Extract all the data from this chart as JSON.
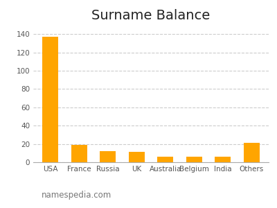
{
  "title": "Surname Balance",
  "categories": [
    "USA",
    "France",
    "Russia",
    "UK",
    "Australia",
    "Belgium",
    "India",
    "Others"
  ],
  "values": [
    137,
    19,
    12,
    11,
    6,
    6,
    6,
    21
  ],
  "bar_color": "#FFA500",
  "ylim": [
    0,
    150
  ],
  "yticks": [
    0,
    20,
    40,
    60,
    80,
    100,
    120,
    140
  ],
  "grid_color": "#cccccc",
  "background_color": "#ffffff",
  "title_fontsize": 14,
  "tick_fontsize": 7.5,
  "footer_text": "namespedia.com",
  "footer_fontsize": 8.5,
  "bar_width": 0.55
}
